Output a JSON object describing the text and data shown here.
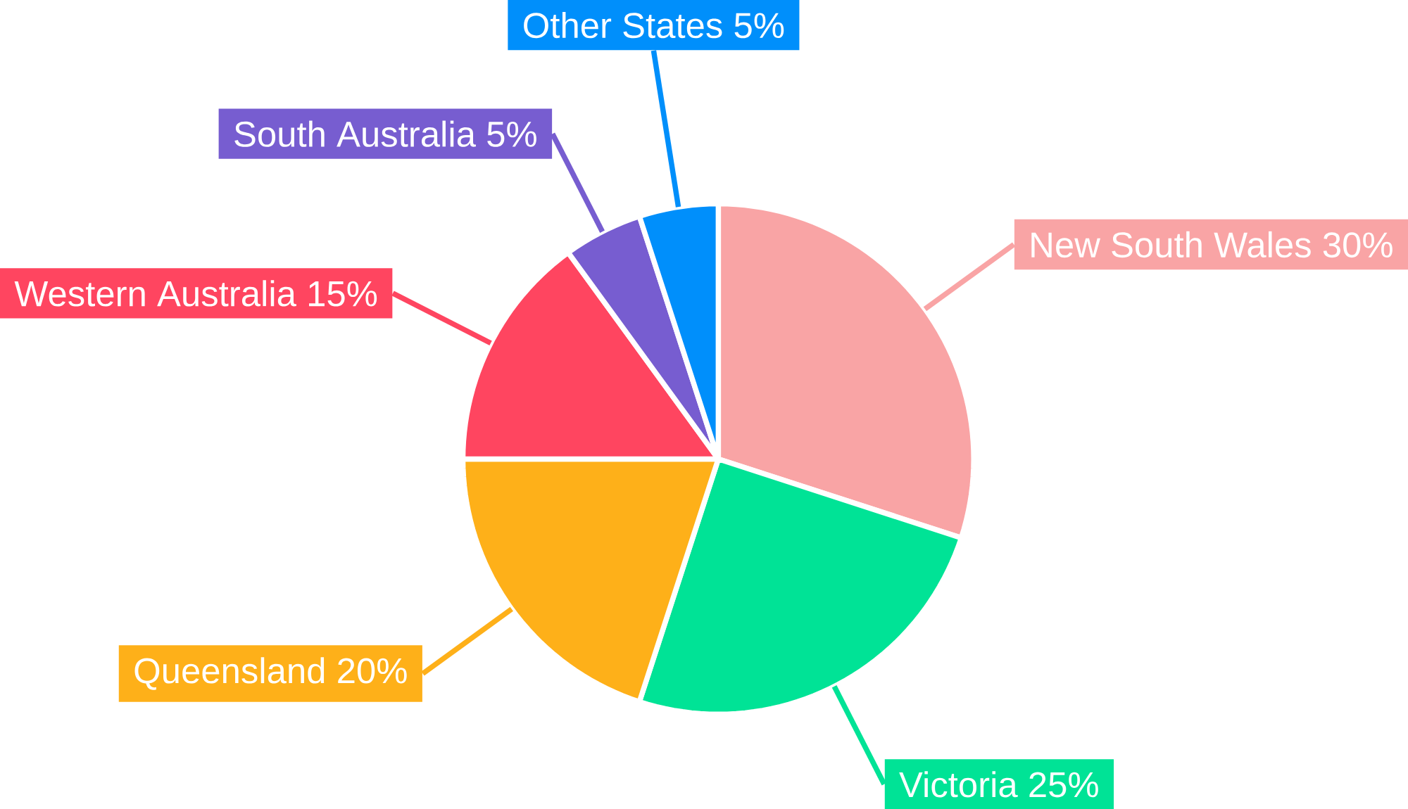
{
  "chart_data": {
    "type": "pie",
    "categories": [
      "New South Wales",
      "Victoria",
      "Queensland",
      "Western Australia",
      "South Australia",
      "Other States"
    ],
    "values": [
      30,
      25,
      20,
      15,
      5,
      5
    ],
    "value_labels": [
      "30%",
      "25%",
      "20%",
      "15%",
      "5%",
      "5%"
    ],
    "colors": [
      "#f9a4a5",
      "#00e396",
      "#feb019",
      "#ff4560",
      "#775dd0",
      "#008ffb"
    ]
  }
}
